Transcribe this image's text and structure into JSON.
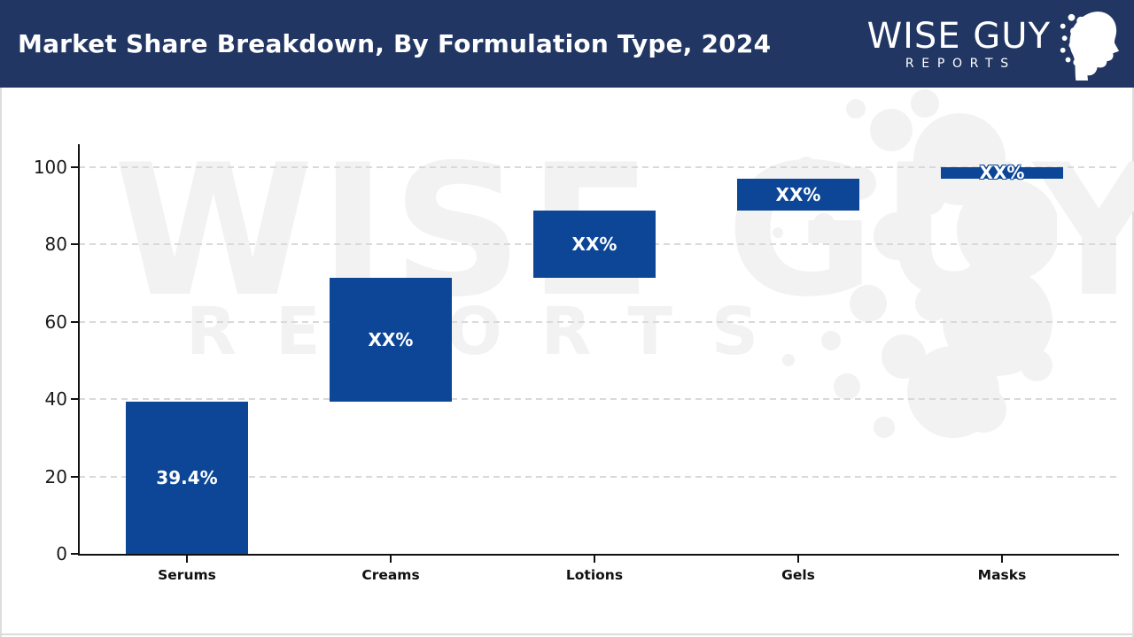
{
  "header": {
    "title": "Market Share Breakdown, By Formulation Type, 2024",
    "logo": {
      "line1": "WISE GUY",
      "line2": "REPORTS"
    }
  },
  "watermark": {
    "line1": "WISE GUY",
    "line2": "REPORTS"
  },
  "chart_data": {
    "type": "bar",
    "subtype": "waterfall",
    "title": "Market Share Breakdown, By Formulation Type, 2024",
    "categories": [
      "Serums",
      "Creams",
      "Lotions",
      "Gels",
      "Masks"
    ],
    "segments": [
      {
        "category": "Serums",
        "start": 0,
        "end": 39.4,
        "value": 39.4,
        "label": "39.4%"
      },
      {
        "category": "Creams",
        "start": 39.4,
        "end": 71.3,
        "value": 31.9,
        "label": "XX%"
      },
      {
        "category": "Lotions",
        "start": 71.3,
        "end": 88.7,
        "value": 17.4,
        "label": "XX%"
      },
      {
        "category": "Gels",
        "start": 88.7,
        "end": 96.9,
        "value": 8.2,
        "label": "XX%"
      },
      {
        "category": "Masks",
        "start": 96.9,
        "end": 100,
        "value": 3.1,
        "label": "XX%"
      }
    ],
    "yticks": [
      0,
      20,
      40,
      60,
      80,
      100
    ],
    "ylim": [
      0,
      106
    ],
    "xlabel": "",
    "ylabel": "",
    "grid": "horizontal-dashed",
    "legend": "none"
  },
  "colors": {
    "header_bg": "#213663",
    "bar": "#0d4696",
    "bar_label_text": "#ffffff",
    "grid": "#d9d9d9",
    "axis": "#111111",
    "tick_text": "#1a1a1a",
    "watermark": "#f2f2f2",
    "title_text": "#ffffff"
  }
}
